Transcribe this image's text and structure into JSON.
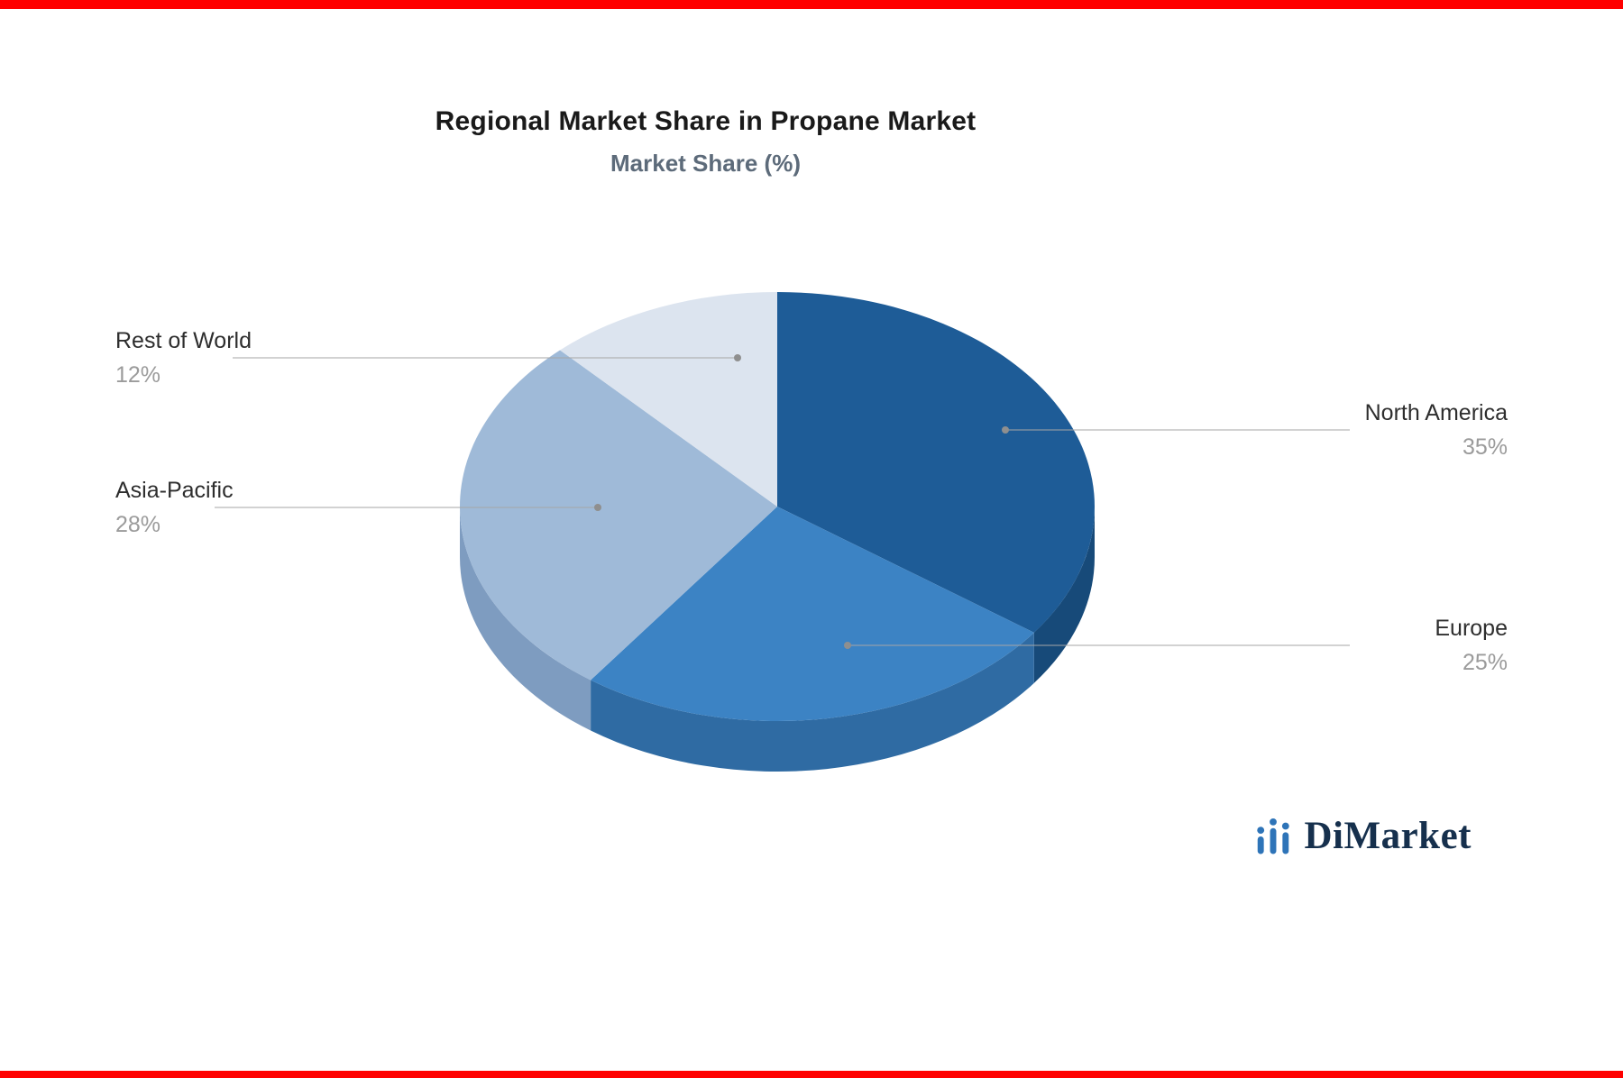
{
  "page": {
    "title": "Regional Market Share in Propane Market",
    "subtitle": "Market Share (%)"
  },
  "brand": {
    "name": "DiMarket",
    "icon_color": "#2e74b8",
    "text_color": "#16304d"
  },
  "frame": {
    "border_color": "#ff0000"
  },
  "chart_data": {
    "type": "pie",
    "title": "Regional Market Share in Propane Market",
    "subtitle": "Market Share (%)",
    "unit": "%",
    "is_3d": true,
    "start_angle": "top",
    "direction": "clockwise",
    "legend_position": "none",
    "slices": [
      {
        "label": "North America",
        "value": 35,
        "display": "35%",
        "color": "#1E5C97",
        "depth_color": "#174A79"
      },
      {
        "label": "Europe",
        "value": 25,
        "display": "25%",
        "color": "#3C83C4",
        "depth_color": "#2F6BA3"
      },
      {
        "label": "Asia-Pacific",
        "value": 28,
        "display": "28%",
        "color": "#9FBAD8",
        "depth_color": "#7E9CC0"
      },
      {
        "label": "Rest of World",
        "value": 12,
        "display": "12%",
        "color": "#DCE4EF",
        "depth_color": "#B8C5D8"
      }
    ]
  }
}
